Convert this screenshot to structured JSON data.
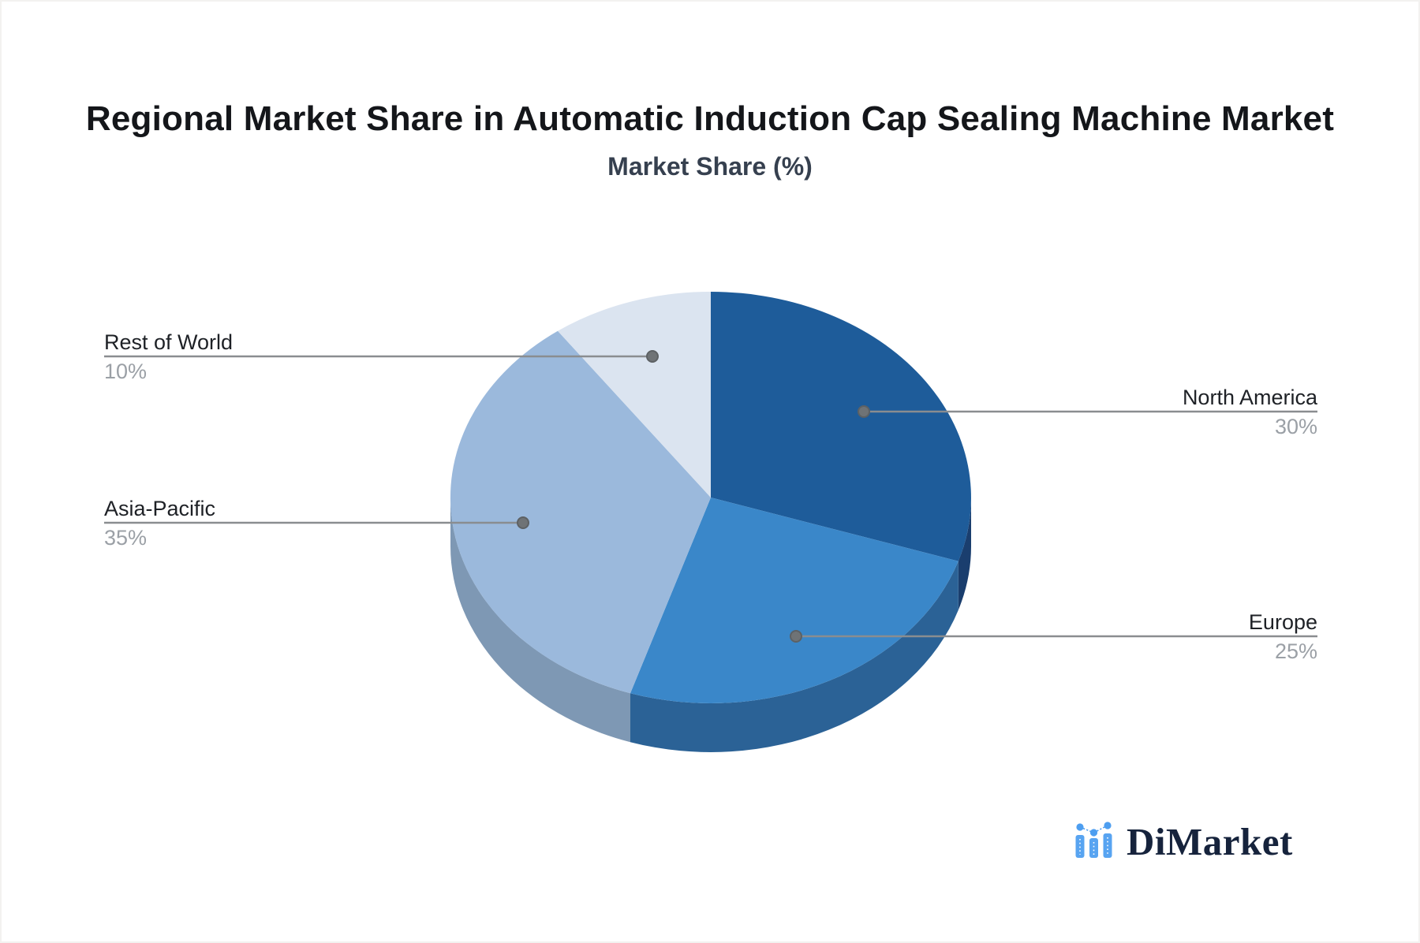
{
  "header": {
    "title": "Regional Market Share in Automatic Induction Cap Sealing Machine Market",
    "subtitle": "Market Share (%)"
  },
  "chart_data": {
    "type": "pie",
    "style": "3d",
    "title": "Regional Market Share in Automatic Induction Cap Sealing Machine Market",
    "subtitle": "Market Share (%)",
    "unit": "%",
    "start_angle_deg": 0,
    "direction": "clockwise",
    "legend_position": "callouts",
    "segments": [
      {
        "label": "North America",
        "value": 30,
        "pct_label": "30%",
        "color": "#1E5C9A",
        "side_color": "#1A3E6E",
        "callout_side": "right"
      },
      {
        "label": "Europe",
        "value": 25,
        "pct_label": "25%",
        "color": "#3A87C9",
        "side_color": "#2B6296",
        "callout_side": "right"
      },
      {
        "label": "Asia-Pacific",
        "value": 35,
        "pct_label": "35%",
        "color": "#9BB9DC",
        "side_color": "#7E98B4",
        "callout_side": "left"
      },
      {
        "label": "Rest of World",
        "value": 10,
        "pct_label": "10%",
        "color": "#DBE4F0",
        "side_color": "#C2CFE0",
        "callout_side": "left"
      }
    ]
  },
  "callout_style": {
    "line_color": "#8A8D90",
    "dot_color": "#6F7376",
    "label_color": "#1E2126",
    "pct_color": "#9BA0A6"
  },
  "branding": {
    "logo_text": "DiMarket",
    "logo_icon": "bar-line-chart-icon",
    "logo_text_color": "#16233C",
    "logo_icon_color": "#58A4F1"
  }
}
